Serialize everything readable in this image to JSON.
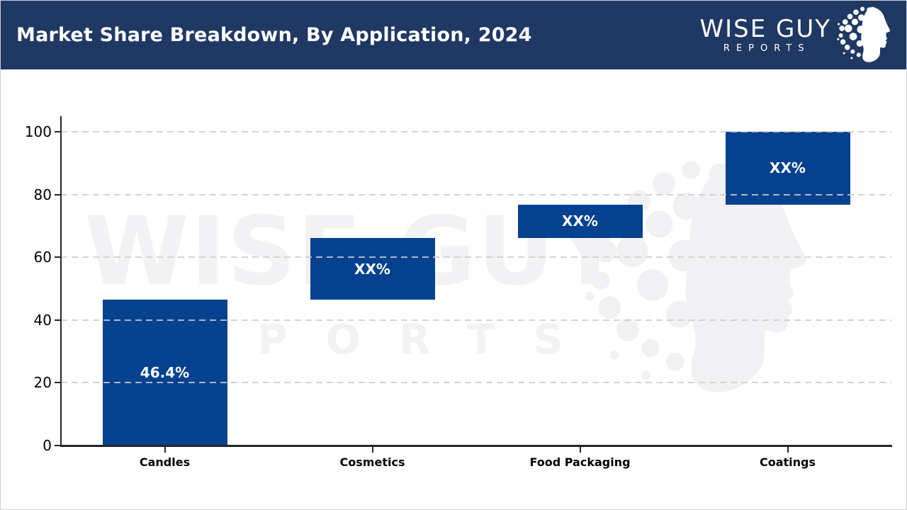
{
  "header": {
    "title": "Market Share Breakdown, By Application, 2024",
    "logo": {
      "line1": "WISE GUY",
      "line2": "REPORTS"
    }
  },
  "watermark": {
    "line1": "WISE GUY",
    "line2": "REPORTS"
  },
  "colors": {
    "header_bg": "#1f3864",
    "bar": "#04418f",
    "grid": "#d2d2d2",
    "axis": "#262626",
    "bar_label": "#ffffff",
    "watermark": "#f2f2f4"
  },
  "chart_data": {
    "type": "bar",
    "subtype": "waterfall",
    "title": "Market Share Breakdown, By Application, 2024",
    "xlabel": "",
    "ylabel": "",
    "ylim": [
      0,
      100
    ],
    "y_ticks": [
      0,
      20,
      40,
      60,
      80,
      100
    ],
    "grid": "horizontal dashed, drawn over bars",
    "legend": "none",
    "categories": [
      "Candles",
      "Cosmetics",
      "Food Packaging",
      "Coatings"
    ],
    "segments": [
      {
        "category": "Candles",
        "start": 0,
        "end": 46.4,
        "label": "46.4%"
      },
      {
        "category": "Cosmetics",
        "start": 46.4,
        "end": 66.2,
        "label": "XX%"
      },
      {
        "category": "Food Packaging",
        "start": 66.2,
        "end": 76.8,
        "label": "XX%"
      },
      {
        "category": "Coatings",
        "start": 76.8,
        "end": 100,
        "label": "XX%"
      }
    ]
  }
}
